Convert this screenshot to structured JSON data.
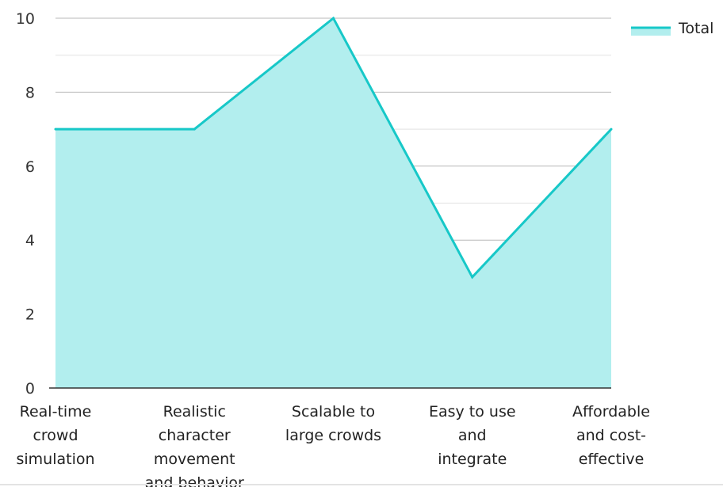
{
  "chart_data": {
    "type": "area",
    "categories": [
      "Real-time crowd simulation",
      "Realistic character movement and behavior",
      "Scalable to large crowds",
      "Easy to use and integrate",
      "Affordable and cost-effective"
    ],
    "category_lines": [
      [
        "Real-time",
        "crowd",
        "simulation"
      ],
      [
        "Realistic",
        "character",
        "movement",
        "and behavior"
      ],
      [
        "Scalable to",
        "large crowds"
      ],
      [
        "Easy to use",
        "and",
        "integrate"
      ],
      [
        "Affordable",
        "and cost-",
        "effective"
      ]
    ],
    "series": [
      {
        "name": "Total",
        "values": [
          7,
          7,
          10,
          3,
          7
        ]
      }
    ],
    "yticks": [
      0,
      2,
      4,
      6,
      8,
      10
    ],
    "ylim": [
      0,
      10
    ],
    "minor_gridlines": true,
    "legend_position": "top-right",
    "colors": {
      "line": "#17c8c8",
      "fill": "#b2eeee",
      "grid_major": "#b8b8b8",
      "grid_minor": "#e2e2e2",
      "axis": "#333333"
    }
  }
}
